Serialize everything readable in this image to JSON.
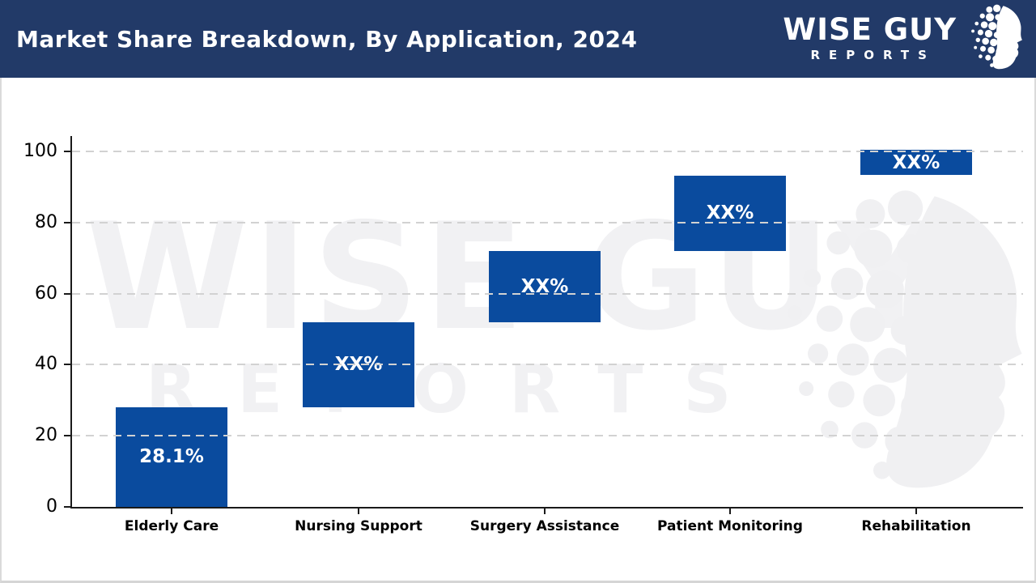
{
  "header": {
    "title": "Market Share Breakdown, By Application, 2024",
    "logo": {
      "line1": "WISE GUY",
      "line2": "REPORTS"
    }
  },
  "watermark": {
    "line1": "WISE GUY",
    "line2": "REPORTS"
  },
  "colors": {
    "header_bg": "#223A68",
    "bar": "#0A4B9E",
    "bar_label": "#FFFFFF",
    "grid": "#D2D2D2",
    "axis": "#1A1A1A",
    "watermark": "#F1F1F3",
    "page_border": "#DADADA"
  },
  "chart_data": {
    "type": "bar",
    "subtype": "waterfall",
    "title": "Market Share Breakdown, By Application, 2024",
    "categories": [
      "Elderly Care",
      "Nursing Support",
      "Surgery Assistance",
      "Patient Monitoring",
      "Rehabilitation"
    ],
    "bars": [
      {
        "category": "Elderly Care",
        "start": 0,
        "end": 28.1,
        "label": "28.1%"
      },
      {
        "category": "Nursing Support",
        "start": 28.1,
        "end": 52.0,
        "label": "XX%"
      },
      {
        "category": "Surgery Assistance",
        "start": 52.0,
        "end": 71.9,
        "label": "XX%"
      },
      {
        "category": "Patient Monitoring",
        "start": 72.0,
        "end": 93.2,
        "label": "XX%"
      },
      {
        "category": "Rehabilitation",
        "start": 93.4,
        "end": 100.4,
        "label": "XX%"
      }
    ],
    "xlabel": "",
    "ylabel": "",
    "ylim": [
      0,
      106
    ],
    "yticks": [
      0,
      20,
      40,
      60,
      80,
      100
    ],
    "grid": "horizontal dashed, drawn over bars",
    "legend": "none",
    "bar_color": "#0A4B9E",
    "label_color": "#FFFFFF"
  }
}
